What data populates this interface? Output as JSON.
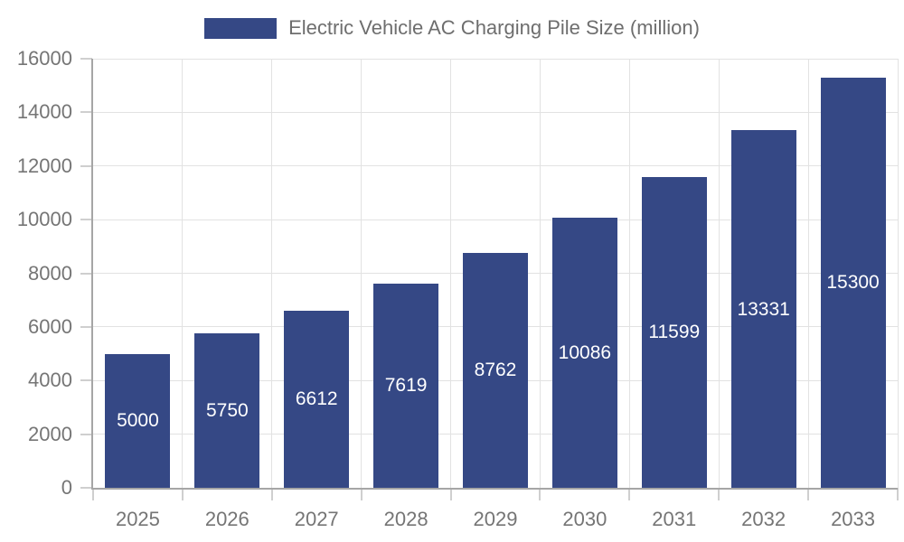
{
  "legend": {
    "label": "Electric Vehicle AC Charging Pile Size (million)"
  },
  "colors": {
    "background": "#ffffff",
    "bar": "#354885",
    "grid": "#e2e2e2",
    "axis": "#a6a6a6",
    "tick": "#cfcfcf",
    "axis_text": "#757575",
    "legend_text": "#6e6e6e",
    "value_label": "#ffffff"
  },
  "chart_data": {
    "type": "bar",
    "title": "Electric Vehicle AC Charging Pile Size (million)",
    "categories": [
      "2025",
      "2026",
      "2027",
      "2028",
      "2029",
      "2030",
      "2031",
      "2032",
      "2033"
    ],
    "series": [
      {
        "name": "Electric Vehicle AC Charging Pile Size (million)",
        "values": [
          5000,
          5750,
          6612,
          7619,
          8762,
          10086,
          11599,
          13331,
          15300
        ]
      }
    ],
    "xlabel": "",
    "ylabel": "",
    "ylim": [
      0,
      16000
    ],
    "ytick_step": 2000,
    "grid": true,
    "legend_position": "top-center",
    "value_label_position": "inside-center"
  }
}
